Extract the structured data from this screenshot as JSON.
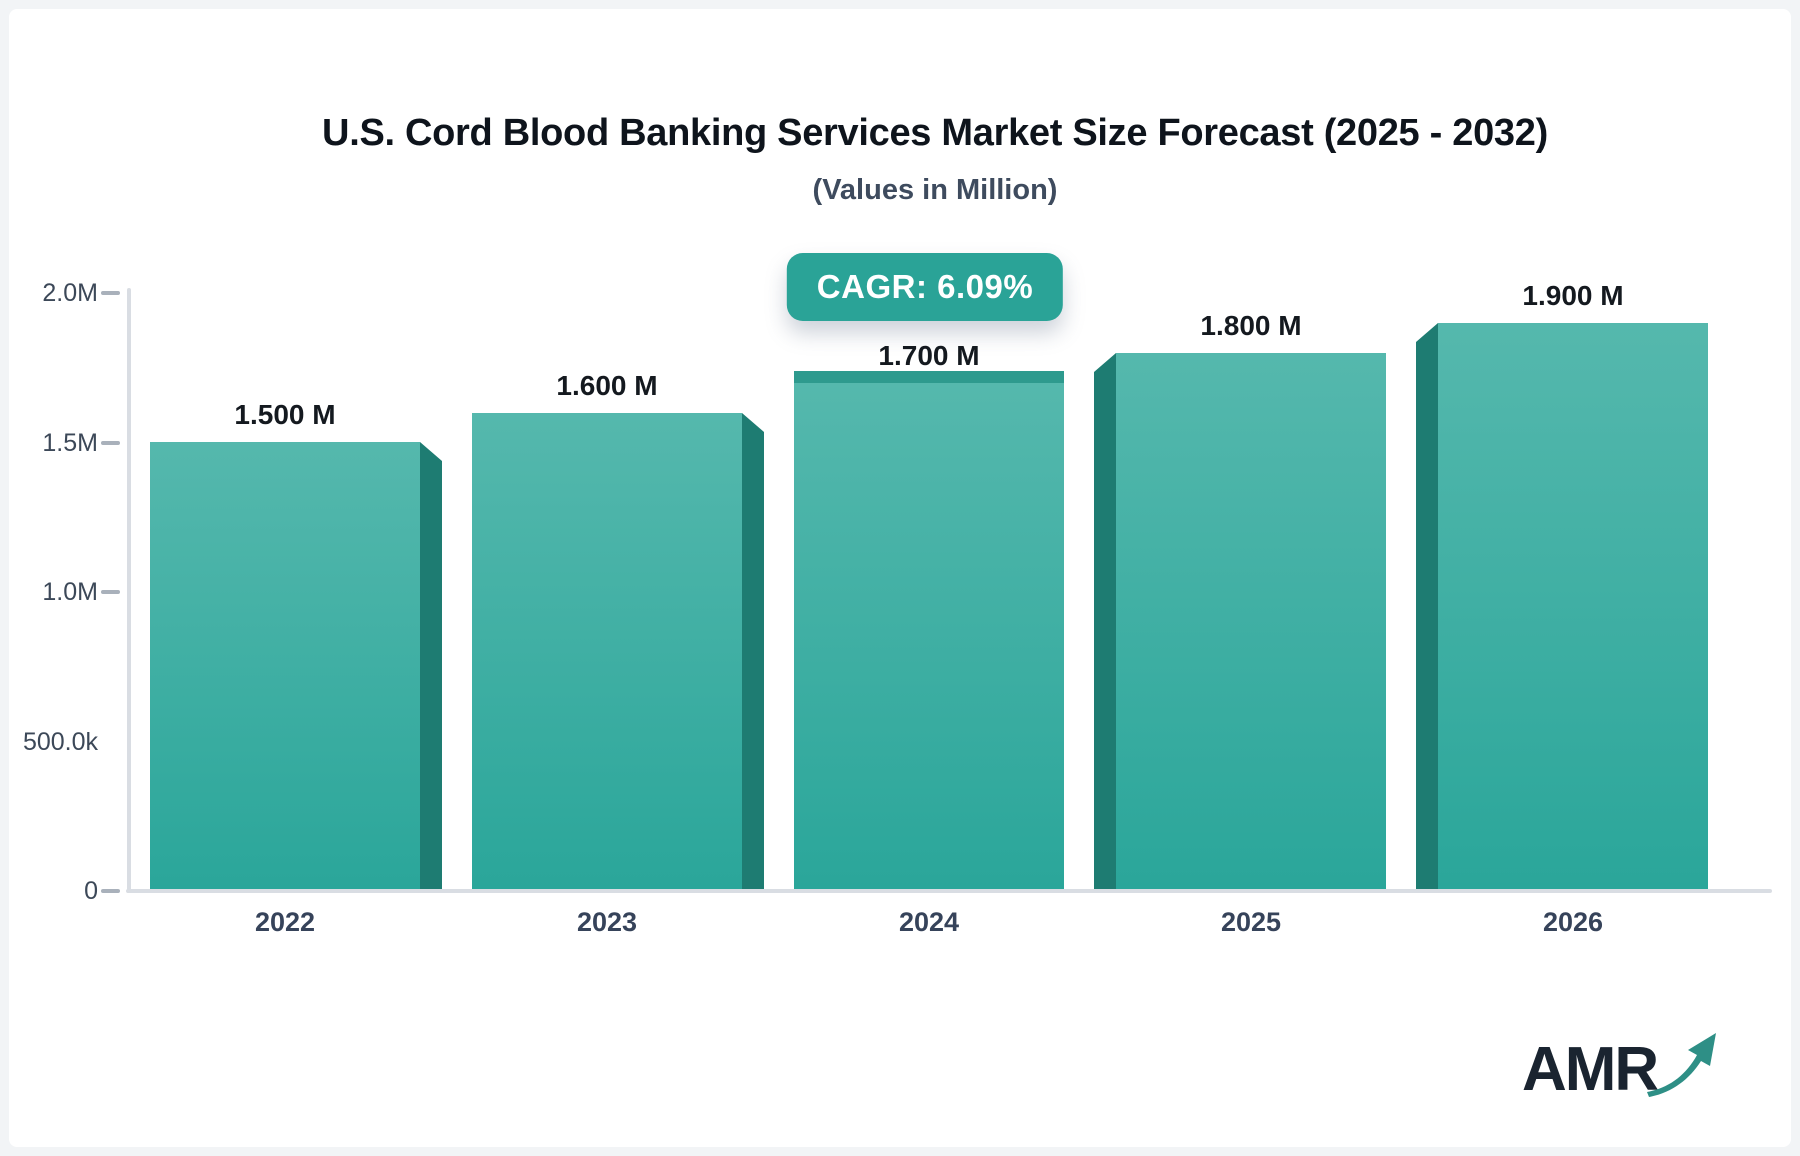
{
  "page": {
    "background": "#f2f4f6",
    "card_background": "#ffffff"
  },
  "header": {
    "title": "U.S. Cord Blood Banking Services Market Size Forecast (2025 - 2032)",
    "subtitle": "(Values in Million)"
  },
  "cagr": {
    "label": "CAGR: 6.09%",
    "bg_color": "#2aa397",
    "text_color": "#ffffff"
  },
  "logo": {
    "text": "AMR",
    "arrow_icon": "trend-up-arrow",
    "text_color": "#1a2430",
    "arrow_color": "#2e8f86"
  },
  "chart_data": {
    "type": "bar",
    "title": "U.S. Cord Blood Banking Services Market Size Forecast (2025 - 2032)",
    "subtitle": "(Values in Million)",
    "categories": [
      "2022",
      "2023",
      "2024",
      "2025",
      "2026"
    ],
    "series": [
      {
        "name": "Market Size",
        "values_millions": [
          1.5,
          1.6,
          1.7,
          1.8,
          1.9
        ]
      }
    ],
    "bar_labels": [
      "1.500 M",
      "1.600 M",
      "1.700 M",
      "1.800 M",
      "1.900 M"
    ],
    "annotation": "CAGR: 6.09%",
    "xlabel": "",
    "ylabel": "",
    "ylim": [
      0,
      2000000
    ],
    "grid": false,
    "legend": null,
    "y_ticks": [
      {
        "label": "2.0M",
        "value": 2000000,
        "dash": true
      },
      {
        "label": "1.5M",
        "value": 1500000,
        "dash": true
      },
      {
        "label": "1.0M",
        "value": 1000000,
        "dash": true
      },
      {
        "label": "500.0k",
        "value": 500000,
        "dash": false
      },
      {
        "label": "0",
        "value": 0,
        "dash": true
      }
    ],
    "colors": {
      "bar_gradient_top": "#55b8ad",
      "bar_gradient_bottom": "#2aa69a",
      "bar_side_face": "#1e7c72",
      "bar_top_cap": "#2e9a8e",
      "axis_line": "#d9dde3",
      "tick_dash": "#a9b1bb"
    }
  }
}
